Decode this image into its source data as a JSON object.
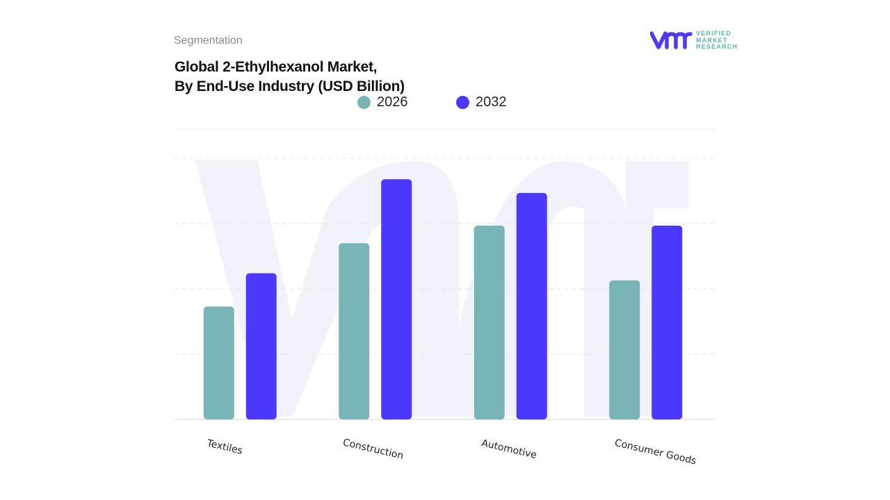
{
  "header": {
    "section": "Segmentation",
    "title_line1": "Global 2-Ethylhexanol Market,",
    "title_line2": "By End-Use Industry (USD Billion)"
  },
  "logo": {
    "line1": "VERIFIED",
    "line2": "MARKET",
    "line3": "RESEARCH",
    "brand_color": "#4d3bf0",
    "text_color": "#5bb6b0"
  },
  "chart_data": {
    "type": "bar",
    "categories": [
      "Textiles",
      "Construction",
      "Automotive",
      "Consumer Goods"
    ],
    "series": [
      {
        "name": "2026",
        "color": "#79b4b7",
        "values": [
          1.73,
          2.7,
          2.97,
          2.13
        ]
      },
      {
        "name": "2032",
        "color": "#4b38fc",
        "values": [
          2.24,
          3.68,
          3.47,
          2.97
        ]
      }
    ],
    "ylim": [
      0,
      4
    ],
    "y_axis_labels_shown": false,
    "grid": true,
    "legend_placement": "top-center",
    "xlabel": "",
    "ylabel": ""
  }
}
